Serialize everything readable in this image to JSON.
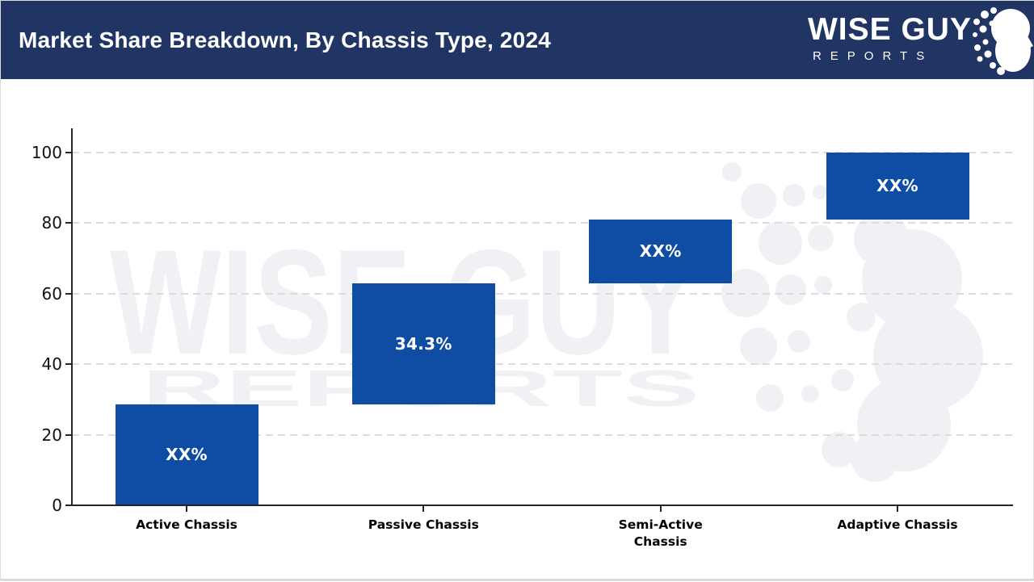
{
  "header": {
    "title": "Market Share Breakdown, By Chassis Type, 2024",
    "logo": {
      "line1": "WISE GUY",
      "line2": "REPORTS"
    }
  },
  "watermark": {
    "line1": "WISE GUY",
    "line2": "REPORTS"
  },
  "chart_data": {
    "type": "bar",
    "subtype": "floating-waterfall",
    "title": "Market Share Breakdown, By Chassis Type, 2024",
    "categories": [
      "Active Chassis",
      "Passive Chassis",
      "Semi-Active Chassis",
      "Adaptive Chassis"
    ],
    "category_label_lines": [
      [
        "Active Chassis"
      ],
      [
        "Passive Chassis"
      ],
      [
        "Semi-Active",
        "Chassis"
      ],
      [
        "Adaptive Chassis"
      ]
    ],
    "series": [
      {
        "name": "Market share (%)",
        "segments": [
          {
            "category": "Active Chassis",
            "start": 0,
            "end": 28.6,
            "label": "XX%"
          },
          {
            "category": "Passive Chassis",
            "start": 28.6,
            "end": 62.9,
            "label": "34.3%"
          },
          {
            "category": "Semi-Active Chassis",
            "start": 62.9,
            "end": 80.9,
            "label": "XX%"
          },
          {
            "category": "Adaptive Chassis",
            "start": 80.9,
            "end": 100,
            "label": "XX%"
          }
        ]
      }
    ],
    "xlabel": "",
    "ylabel": "",
    "ylim": [
      0,
      107
    ],
    "yticks": [
      0,
      20,
      40,
      60,
      80,
      100
    ],
    "grid": "horizontal-dashed",
    "legend_position": "none",
    "bar_color": "#0E4DA3",
    "bar_label_color": "#ffffff"
  },
  "colors": {
    "header_bg": "#213565",
    "bar": "#0E4DA3",
    "grid": "#dcdcdc",
    "axis": "#262626",
    "watermark": "#f0f1f4",
    "border": "#d9d9d9"
  }
}
